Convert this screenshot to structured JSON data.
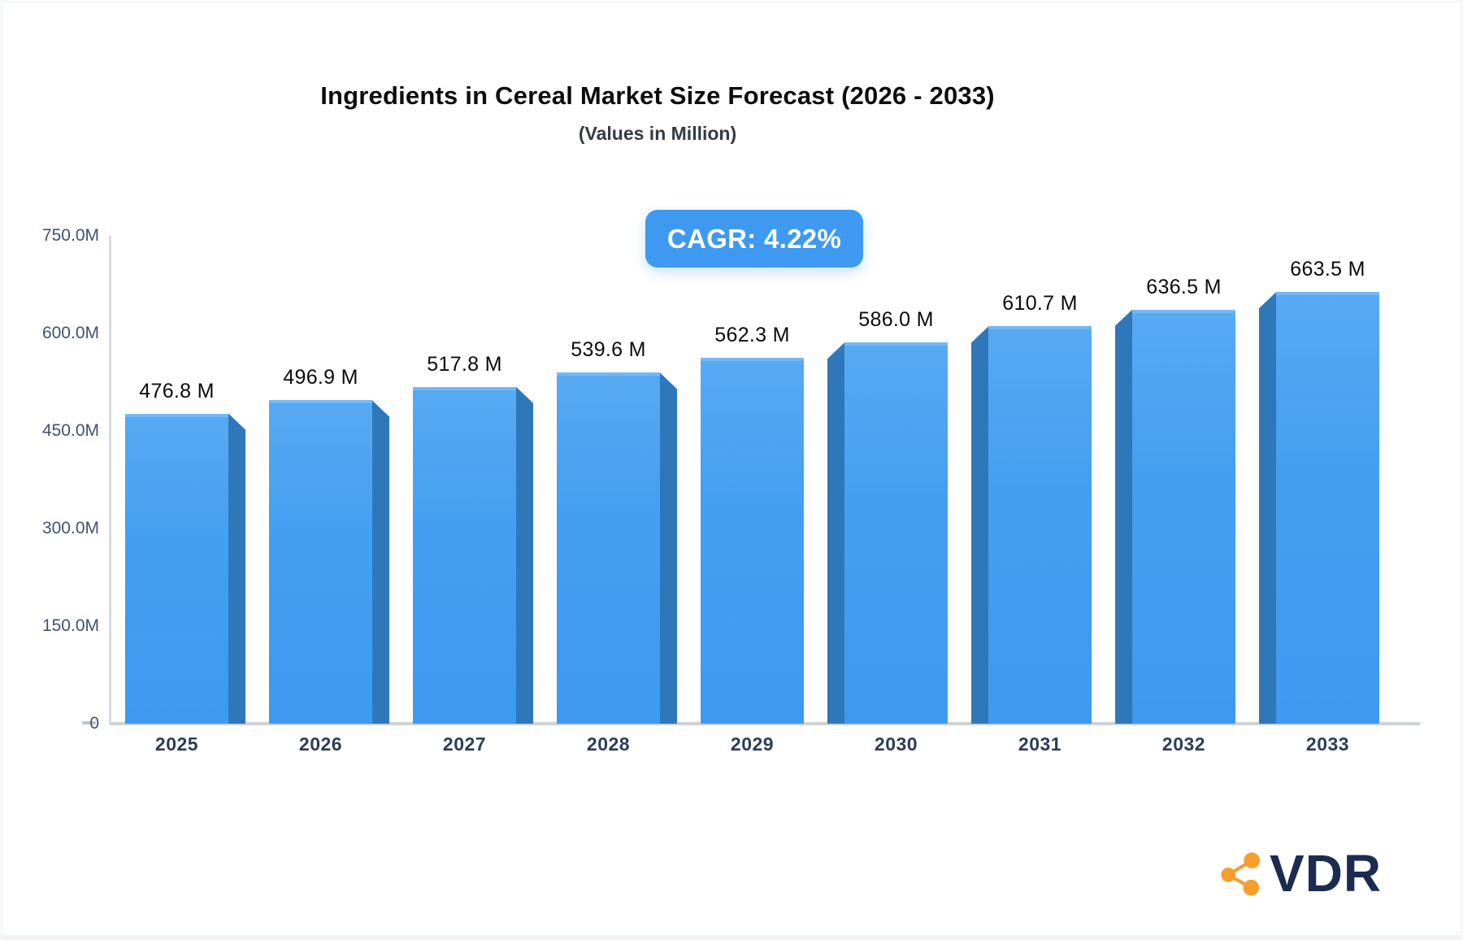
{
  "chart_data": {
    "type": "bar",
    "title": "Ingredients in Cereal Market Size Forecast (2026 - 2033)",
    "subtitle": "(Values in Million)",
    "badge_label": "CAGR: 4.22%",
    "categories": [
      "2025",
      "2026",
      "2027",
      "2028",
      "2029",
      "2030",
      "2031",
      "2032",
      "2033"
    ],
    "values": [
      476.8,
      496.9,
      517.8,
      539.6,
      562.3,
      586.0,
      610.7,
      636.5,
      663.5
    ],
    "value_labels": [
      "476.8 M",
      "496.9 M",
      "517.8 M",
      "539.6 M",
      "562.3 M",
      "586.0 M",
      "610.7 M",
      "636.5 M",
      "663.5 M"
    ],
    "y_ticks": [
      {
        "value": 750,
        "label": "750.0M"
      },
      {
        "value": 600,
        "label": "600.0M"
      },
      {
        "value": 450,
        "label": "450.0M"
      },
      {
        "value": 300,
        "label": "300.0M"
      },
      {
        "value": 150,
        "label": "150.0M"
      },
      {
        "value": 0,
        "label": "0"
      }
    ],
    "ylim": [
      0,
      750
    ],
    "xlabel": "",
    "ylabel": "",
    "grid": false,
    "legend": false,
    "unit": "Million",
    "colors": {
      "bar_face_top": "#57a9f2",
      "bar_face_bottom": "#3e99f1",
      "bar_side": "#2e78ba",
      "bar_top_cap": "#74b8f5",
      "badge_background": "#3e9af0",
      "badge_text": "#ffffff",
      "axis_line": "#d7dade",
      "axis_text": "#42526b",
      "category_text": "#2d3d57",
      "value_text": "#0b0b0b"
    }
  },
  "brand": {
    "name": "VDR",
    "icon": "share-network-icon",
    "icon_color": "#f79e2d",
    "text_color": "#1c2b52"
  }
}
